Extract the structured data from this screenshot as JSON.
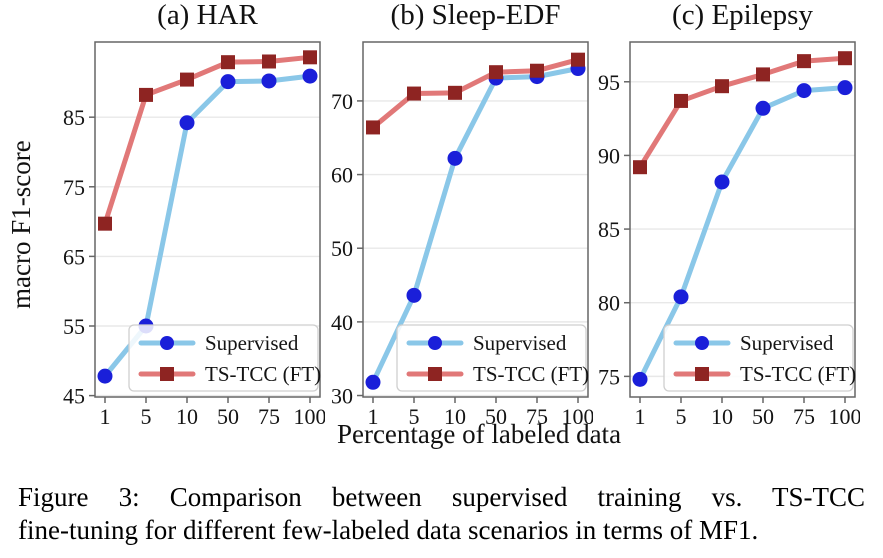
{
  "figure": {
    "ylabel": "macro F1-score",
    "xlabel": "Percentage of labeled data",
    "caption_line1": "Figure 3: Comparison between supervised training vs. TS-TCC",
    "caption_line2": "fine-tuning for different few-labeled data scenarios in terms of MF1."
  },
  "colors": {
    "supervised_line": "#8AC7E8",
    "supervised_marker": "#1A1FD9",
    "tstcc_line": "#E17878",
    "tstcc_marker": "#8E2422",
    "grid": "#E8E8E8",
    "spine": "#666666",
    "legend_border": "#CFCFCF",
    "text": "#141414"
  },
  "chart_data": [
    {
      "type": "line",
      "title": "(a) HAR",
      "xlabel": "Percentage of labeled data",
      "ylabel": "macro F1-score",
      "categories": [
        1,
        5,
        10,
        50,
        75,
        100
      ],
      "series": [
        {
          "name": "Supervised",
          "marker": "circle",
          "values": [
            47.8,
            55.0,
            84.2,
            90.1,
            90.2,
            90.9
          ]
        },
        {
          "name": "TS-TCC (FT)",
          "marker": "square",
          "values": [
            69.7,
            88.2,
            90.4,
            92.9,
            93.0,
            93.6
          ]
        }
      ],
      "yticks": [
        45,
        55,
        65,
        75,
        85
      ],
      "ylim": [
        44.8,
        95.8
      ],
      "grid": true,
      "legend_position": "lower right"
    },
    {
      "type": "line",
      "title": "(b) Sleep-EDF",
      "xlabel": "Percentage of labeled data",
      "ylabel": "macro F1-score",
      "categories": [
        1,
        5,
        10,
        50,
        75,
        100
      ],
      "series": [
        {
          "name": "Supervised",
          "marker": "circle",
          "values": [
            31.8,
            43.6,
            62.2,
            73.1,
            73.3,
            74.4
          ]
        },
        {
          "name": "TS-TCC (FT)",
          "marker": "square",
          "values": [
            66.4,
            71.0,
            71.1,
            73.9,
            74.1,
            75.6
          ]
        }
      ],
      "yticks": [
        30,
        40,
        50,
        60,
        70
      ],
      "ylim": [
        29.8,
        78.0
      ],
      "grid": true,
      "legend_position": "lower right"
    },
    {
      "type": "line",
      "title": "(c) Epilepsy",
      "xlabel": "Percentage of labeled data",
      "ylabel": "macro F1-score",
      "categories": [
        1,
        5,
        10,
        50,
        75,
        100
      ],
      "series": [
        {
          "name": "Supervised",
          "marker": "circle",
          "values": [
            74.8,
            80.4,
            88.2,
            93.2,
            94.4,
            94.6
          ]
        },
        {
          "name": "TS-TCC (FT)",
          "marker": "square",
          "values": [
            89.2,
            93.7,
            94.7,
            95.5,
            96.4,
            96.6
          ]
        }
      ],
      "yticks": [
        75,
        80,
        85,
        90,
        95
      ],
      "ylim": [
        73.6,
        97.7
      ],
      "grid": true,
      "legend_position": "lower right"
    }
  ]
}
